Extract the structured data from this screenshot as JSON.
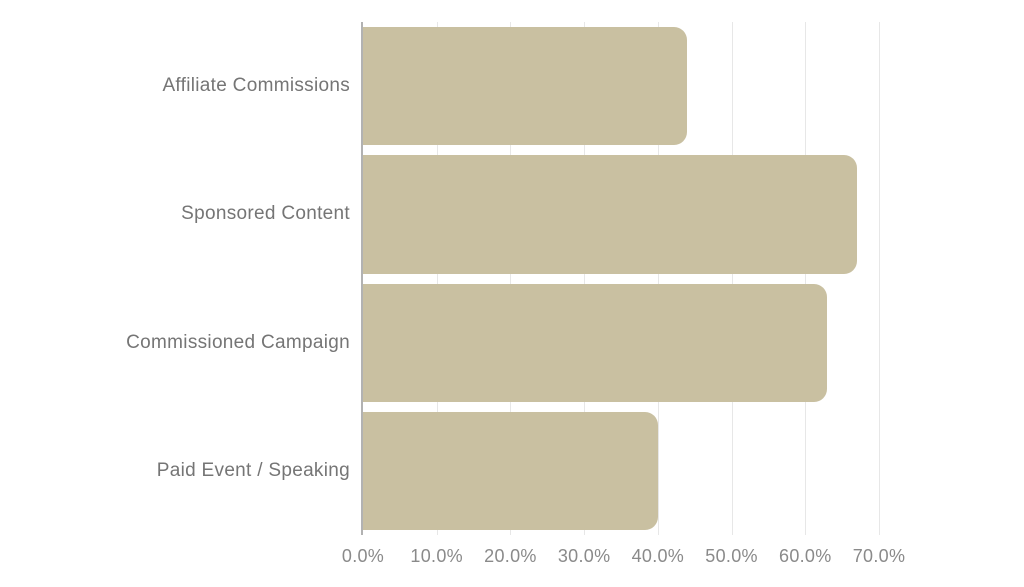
{
  "chart_data": {
    "type": "bar",
    "orientation": "horizontal",
    "title": "",
    "xlabel": "",
    "ylabel": "",
    "categories": [
      "Affiliate Commissions",
      "Sponsored Content",
      "Commissioned Campaign",
      "Paid Event / Speaking"
    ],
    "values": [
      44.0,
      67.0,
      63.0,
      40.0
    ],
    "value_unit": "%",
    "xlim": [
      0,
      70
    ],
    "x_tick_step": 10,
    "x_tick_labels": [
      "0.0%",
      "10.0%",
      "20.0%",
      "30.0%",
      "40.0%",
      "50.0%",
      "60.0%",
      "70.0%"
    ],
    "grid": "vertical-only",
    "legend": "none",
    "colors": {
      "bar": "#c9c0a1",
      "gridline": "#e7e7e7",
      "axis_line": "#b2b2b2",
      "category_text": "#757575",
      "tick_text": "#8a8a8a",
      "background": "#ffffff"
    }
  }
}
